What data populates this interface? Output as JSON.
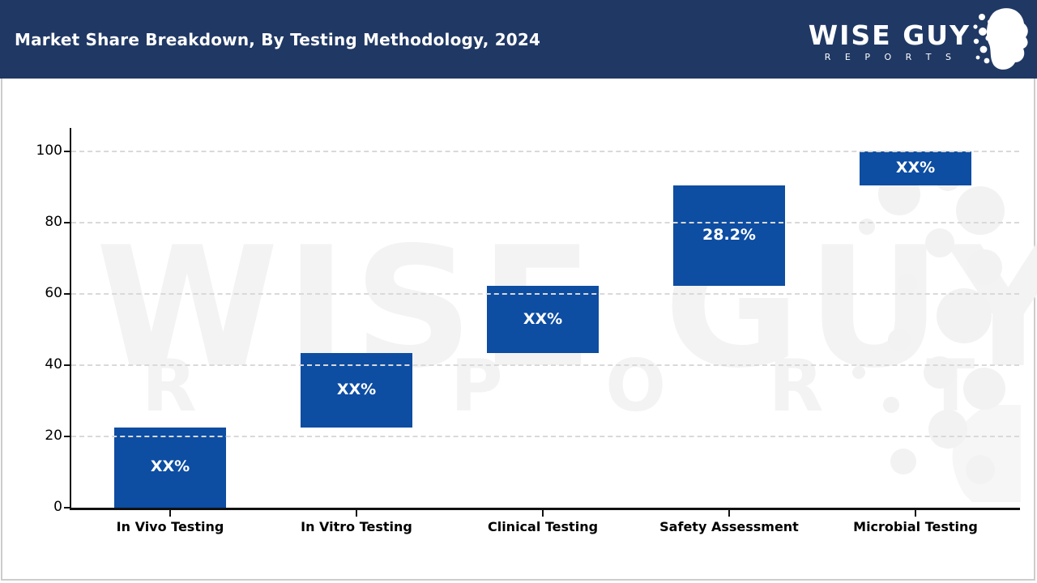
{
  "header": {
    "title": "Market Share Breakdown, By Testing Methodology, 2024",
    "logo": {
      "name": "WISE GUY",
      "sub": "R E P O R T S"
    }
  },
  "watermark": {
    "line1": "WISE GUY",
    "line2": "R E P O R T S"
  },
  "colors": {
    "header_bg": "#203864",
    "bar": "#0d4da2",
    "grid": "#d9d9d9",
    "axis": "#111111",
    "bar_label": "#ffffff",
    "watermark": "#f3f3f3",
    "frame_border": "#cccccc"
  },
  "chart_data": {
    "type": "bar",
    "subtype": "waterfall",
    "title": "Market Share Breakdown, By Testing Methodology, 2024",
    "categories": [
      "In Vivo Testing",
      "In Vitro Testing",
      "Clinical Testing",
      "Safety Assessment",
      "Microbial Testing"
    ],
    "segments": [
      {
        "category": "In Vivo Testing",
        "start": 0,
        "end": 22.6,
        "label": "XX%"
      },
      {
        "category": "In Vitro Testing",
        "start": 22.6,
        "end": 43.3,
        "label": "XX%"
      },
      {
        "category": "Clinical Testing",
        "start": 43.3,
        "end": 62.2,
        "label": "XX%"
      },
      {
        "category": "Safety Assessment",
        "start": 62.2,
        "end": 90.4,
        "label": "28.2%"
      },
      {
        "category": "Microbial Testing",
        "start": 90.4,
        "end": 100,
        "label": "XX%"
      }
    ],
    "xlabel": "",
    "ylabel": "",
    "ylim": [
      0,
      105
    ],
    "yticks": [
      0,
      20,
      40,
      60,
      80,
      100
    ],
    "grid": "horizontal-dashed",
    "legend": "none"
  }
}
